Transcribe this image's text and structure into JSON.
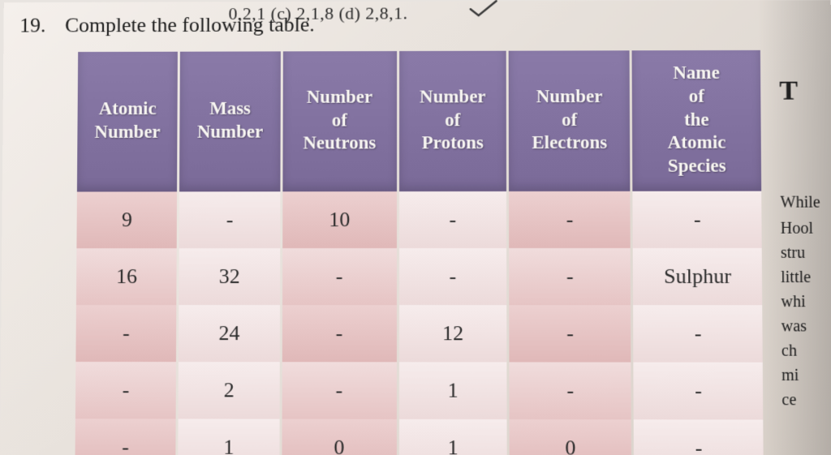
{
  "top_fragment": "0,2,1   (c) 2,1,8       (d) 2,8,1.",
  "question_number": "19.",
  "question_text": "Complete the following table.",
  "table": {
    "columns": [
      "Atomic Number",
      "Mass Number",
      "Number of Neutrons",
      "Number of Protons",
      "Number of Electrons",
      "Name of the Atomic Species"
    ],
    "col_widths_pct": [
      15,
      15,
      17,
      16,
      18,
      19
    ],
    "header_bg": "#7e6e9c",
    "header_fg": "#f8f6f2",
    "body_color_a": "#e6c4c4",
    "body_color_b": "#ecdada",
    "rows": [
      [
        "9",
        "-",
        "10",
        "-",
        "-",
        "-"
      ],
      [
        "16",
        "32",
        "-",
        "-",
        "-",
        "Sulphur"
      ],
      [
        "-",
        "24",
        "-",
        "12",
        "-",
        "-"
      ],
      [
        "-",
        "2",
        "-",
        "1",
        "-",
        "-"
      ],
      [
        "-",
        "1",
        "0",
        "1",
        "0",
        "-"
      ]
    ]
  },
  "margin": {
    "t1": "T",
    "t2": "While",
    "t3": "Hool",
    "t4": "stru",
    "t5": "little",
    "t6": "whi",
    "t7": "was",
    "t8": "ch",
    "t9": "mi",
    "t10": "ce"
  },
  "colors": {
    "page_bg_start": "#f5f0ec",
    "page_bg_end": "#d8d0c8",
    "text": "#1a1a1a"
  }
}
